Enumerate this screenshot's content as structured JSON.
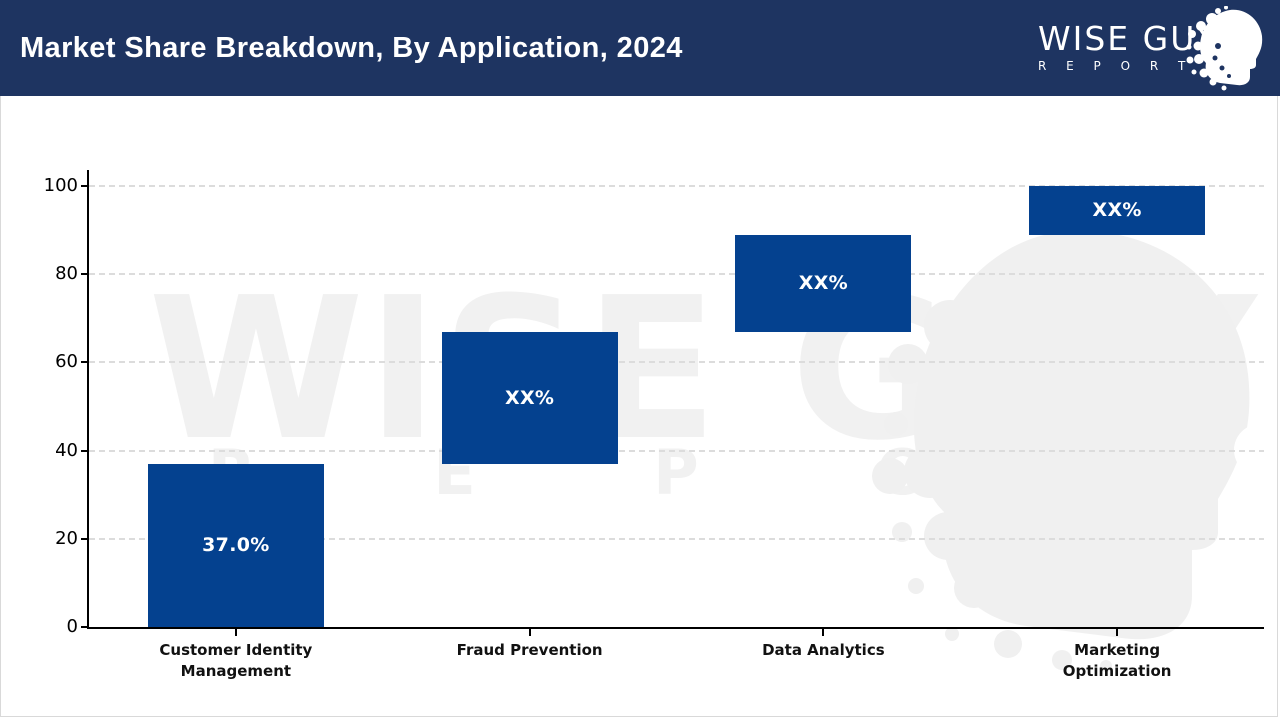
{
  "header": {
    "title": "Market Share Breakdown, By Application, 2024",
    "logo": {
      "line1": "WISE GUY",
      "line2": "R E P O R T S"
    }
  },
  "watermark": {
    "line1": "WISE GUY",
    "line2": "R E P O R T S"
  },
  "chart_data": {
    "type": "bar",
    "subtype": "waterfall",
    "title": "Market Share Breakdown, By Application, 2024",
    "categories": [
      "Customer Identity\nManagement",
      "Fraud Prevention",
      "Data Analytics",
      "Marketing\nOptimization"
    ],
    "segments": [
      {
        "category": "Customer Identity Management",
        "start": 0,
        "end": 37,
        "label": "37.0%"
      },
      {
        "category": "Fraud Prevention",
        "start": 37,
        "end": 67,
        "label": "XX%"
      },
      {
        "category": "Data Analytics",
        "start": 67,
        "end": 89,
        "label": "XX%"
      },
      {
        "category": "Marketing Optimization",
        "start": 89,
        "end": 100,
        "label": "XX%"
      }
    ],
    "xlabel": "",
    "ylabel": "",
    "ylim": [
      0,
      100
    ],
    "yticks": [
      0,
      20,
      40,
      60,
      80,
      100
    ],
    "grid": true,
    "legend": false,
    "bar_color": "#04418F",
    "label_color": "#ffffff",
    "gridline_color": "#dcdcdc",
    "axis_color": "#000000"
  },
  "colors": {
    "header_bg": "#1e3461",
    "watermark": "#f1f1f1",
    "frame_border": "#d9d9d9"
  }
}
